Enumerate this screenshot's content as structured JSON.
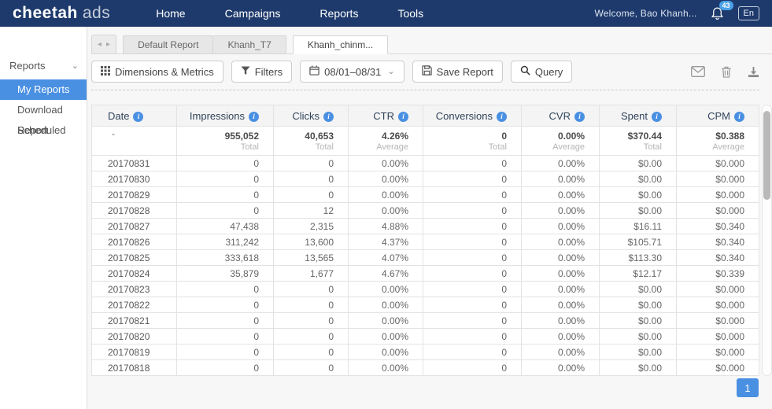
{
  "topbar": {
    "brand_bold": "cheetah",
    "brand_light": "ads",
    "nav": [
      {
        "label": "Home"
      },
      {
        "label": "Campaigns"
      },
      {
        "label": "Reports"
      },
      {
        "label": "Tools"
      }
    ],
    "welcome_label": "Welcome,",
    "username": "Bao Khanh...",
    "notification_count": "43",
    "language": "En"
  },
  "sidebar": {
    "section_label": "Reports",
    "items": [
      {
        "label": "My Reports",
        "active": true
      },
      {
        "label": "Download Report",
        "active": false
      },
      {
        "label": "Scheduled",
        "active": false
      }
    ]
  },
  "tabs": [
    {
      "label": "Default Report",
      "active": false
    },
    {
      "label": "Khanh_T7",
      "active": false
    },
    {
      "label": "Khanh_chinm...",
      "active": true
    }
  ],
  "toolbar": {
    "dimensions_metrics_label": "Dimensions & Metrics",
    "filters_label": "Filters",
    "date_range_label": "08/01–08/31",
    "save_report_label": "Save Report",
    "query_label": "Query"
  },
  "icons": {
    "tab_prev": "◂",
    "tab_next": "▸",
    "chevron_down": "⌄",
    "info": "i"
  },
  "table": {
    "columns": [
      "Date",
      "Impressions",
      "Clicks",
      "CTR",
      "Conversions",
      "CVR",
      "Spent",
      "CPM"
    ],
    "totals": {
      "date": "-",
      "values": [
        "955,052",
        "40,653",
        "4.26%",
        "0",
        "0.00%",
        "$370.44",
        "$0.388"
      ],
      "sublabels": [
        "Total",
        "Total",
        "Average",
        "Total",
        "Average",
        "Total",
        "Average"
      ]
    },
    "rows": [
      [
        "20170831",
        "0",
        "0",
        "0.00%",
        "0",
        "0.00%",
        "$0.00",
        "$0.000"
      ],
      [
        "20170830",
        "0",
        "0",
        "0.00%",
        "0",
        "0.00%",
        "$0.00",
        "$0.000"
      ],
      [
        "20170829",
        "0",
        "0",
        "0.00%",
        "0",
        "0.00%",
        "$0.00",
        "$0.000"
      ],
      [
        "20170828",
        "0",
        "12",
        "0.00%",
        "0",
        "0.00%",
        "$0.00",
        "$0.000"
      ],
      [
        "20170827",
        "47,438",
        "2,315",
        "4.88%",
        "0",
        "0.00%",
        "$16.11",
        "$0.340"
      ],
      [
        "20170826",
        "311,242",
        "13,600",
        "4.37%",
        "0",
        "0.00%",
        "$105.71",
        "$0.340"
      ],
      [
        "20170825",
        "333,618",
        "13,565",
        "4.07%",
        "0",
        "0.00%",
        "$113.30",
        "$0.340"
      ],
      [
        "20170824",
        "35,879",
        "1,677",
        "4.67%",
        "0",
        "0.00%",
        "$12.17",
        "$0.339"
      ],
      [
        "20170823",
        "0",
        "0",
        "0.00%",
        "0",
        "0.00%",
        "$0.00",
        "$0.000"
      ],
      [
        "20170822",
        "0",
        "0",
        "0.00%",
        "0",
        "0.00%",
        "$0.00",
        "$0.000"
      ],
      [
        "20170821",
        "0",
        "0",
        "0.00%",
        "0",
        "0.00%",
        "$0.00",
        "$0.000"
      ],
      [
        "20170820",
        "0",
        "0",
        "0.00%",
        "0",
        "0.00%",
        "$0.00",
        "$0.000"
      ],
      [
        "20170819",
        "0",
        "0",
        "0.00%",
        "0",
        "0.00%",
        "$0.00",
        "$0.000"
      ],
      [
        "20170818",
        "0",
        "0",
        "0.00%",
        "0",
        "0.00%",
        "$0.00",
        "$0.000"
      ]
    ]
  },
  "pagination": {
    "current_page": "1"
  },
  "colors": {
    "topbar_navy": "#1e3a6c",
    "accent_blue": "#4a90e2",
    "badge_blue": "#4aa0e8",
    "header_text": "#31445a",
    "table_border": "#e3e3e3"
  }
}
